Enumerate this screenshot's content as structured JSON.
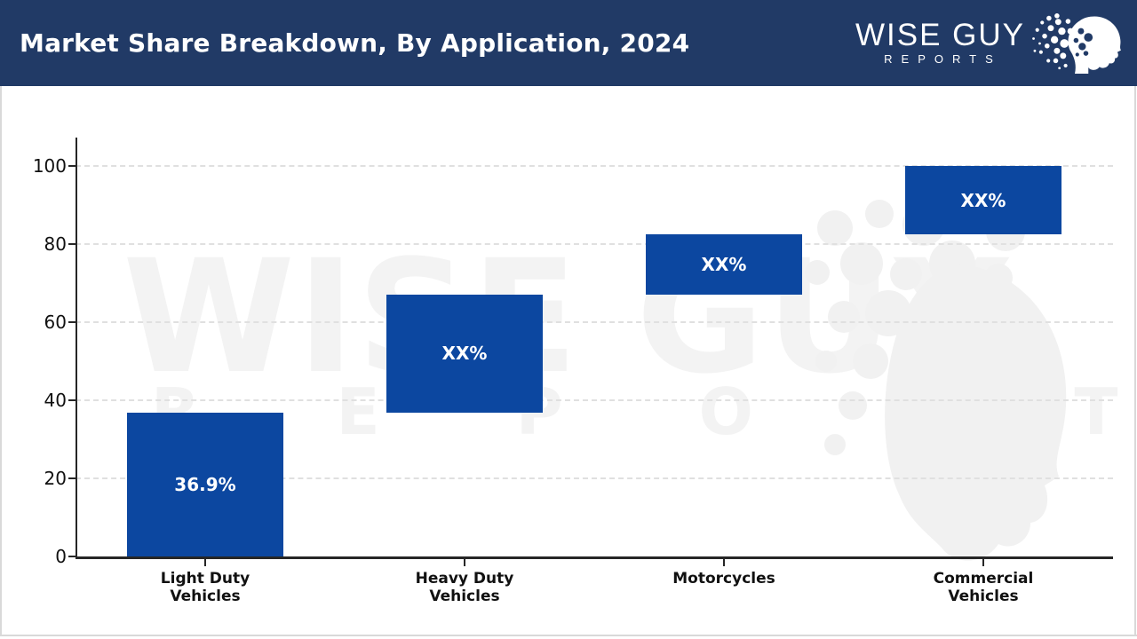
{
  "header": {
    "title": "Market Share Breakdown, By Application, 2024",
    "logo": {
      "line1": "WISE GUY",
      "line2": "REPORTS"
    },
    "background_color": "#213A66"
  },
  "watermark": {
    "line1": "WISE GUY",
    "line2": "R E P O R T S"
  },
  "chart_data": {
    "type": "bar",
    "subtype": "floating-waterfall-segments",
    "title": "Market Share Breakdown, By Application, 2024",
    "categories": [
      "Light Duty Vehicles",
      "Heavy Duty Vehicles",
      "Motorcycles",
      "Commercial Vehicles"
    ],
    "category_label_lines": [
      [
        "Light Duty",
        "Vehicles"
      ],
      [
        "Heavy Duty",
        "Vehicles"
      ],
      [
        "Motorcycles"
      ],
      [
        "Commercial",
        "Vehicles"
      ]
    ],
    "segments": [
      {
        "category": "Light Duty Vehicles",
        "start": 0,
        "end": 36.9,
        "label": "36.9%"
      },
      {
        "category": "Heavy Duty Vehicles",
        "start": 36.9,
        "end": 67.0,
        "label": "XX%"
      },
      {
        "category": "Motorcycles",
        "start": 67.0,
        "end": 82.4,
        "label": "XX%"
      },
      {
        "category": "Commercial Vehicles",
        "start": 82.4,
        "end": 100,
        "label": "XX%"
      }
    ],
    "ylim": [
      0,
      100
    ],
    "yticks": [
      0,
      20,
      40,
      60,
      80,
      100
    ],
    "ytick_labels": [
      "0",
      "20",
      "40",
      "60",
      "80",
      "100"
    ],
    "xlabel": "",
    "ylabel": "",
    "grid": "horizontal dashed",
    "legend": "none",
    "bar_color": "#0C47A0"
  }
}
